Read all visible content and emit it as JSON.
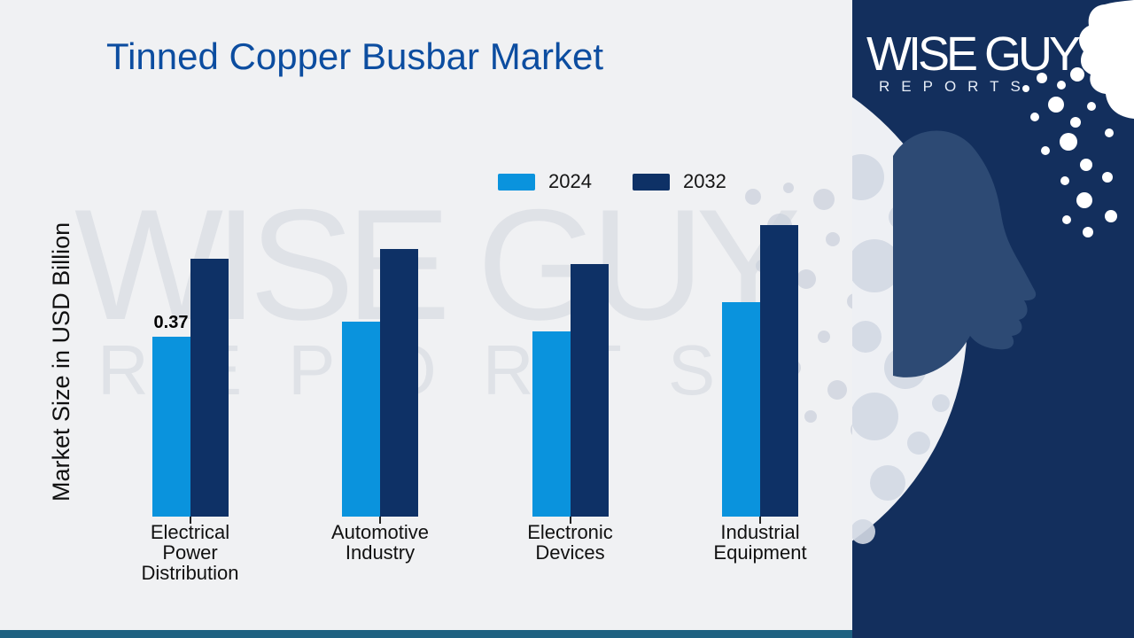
{
  "title": "Tinned Copper Busbar Market",
  "watermark": {
    "line1": "WISE GUY",
    "line2": "REPORTS"
  },
  "brand": {
    "line1": "WISE GUY",
    "line2": "REPORTS"
  },
  "colors": {
    "series_2024": "#0a93dd",
    "series_2032": "#0e3166",
    "title_blue": "#0c4da0",
    "panel_navy": "#132f5d",
    "footer_teal": "#1e6181",
    "background": "#f0f1f3"
  },
  "chart_data": {
    "type": "bar",
    "title": "Tinned Copper Busbar Market",
    "xlabel": "",
    "ylabel": "Market Size in USD Billion",
    "ylim": [
      0,
      0.65
    ],
    "grid": false,
    "legend_position": "top-center",
    "categories": [
      "Electrical Power Distribution",
      "Automotive Industry",
      "Electronic Devices",
      "Industrial Equipment"
    ],
    "series": [
      {
        "name": "2024",
        "color": "#0a93dd",
        "values": [
          0.37,
          0.4,
          0.38,
          0.44
        ]
      },
      {
        "name": "2032",
        "color": "#0e3166",
        "values": [
          0.53,
          0.55,
          0.52,
          0.6
        ]
      }
    ],
    "data_labels": [
      {
        "series": "2024",
        "category": "Electrical Power Distribution",
        "text": "0.37"
      }
    ]
  }
}
